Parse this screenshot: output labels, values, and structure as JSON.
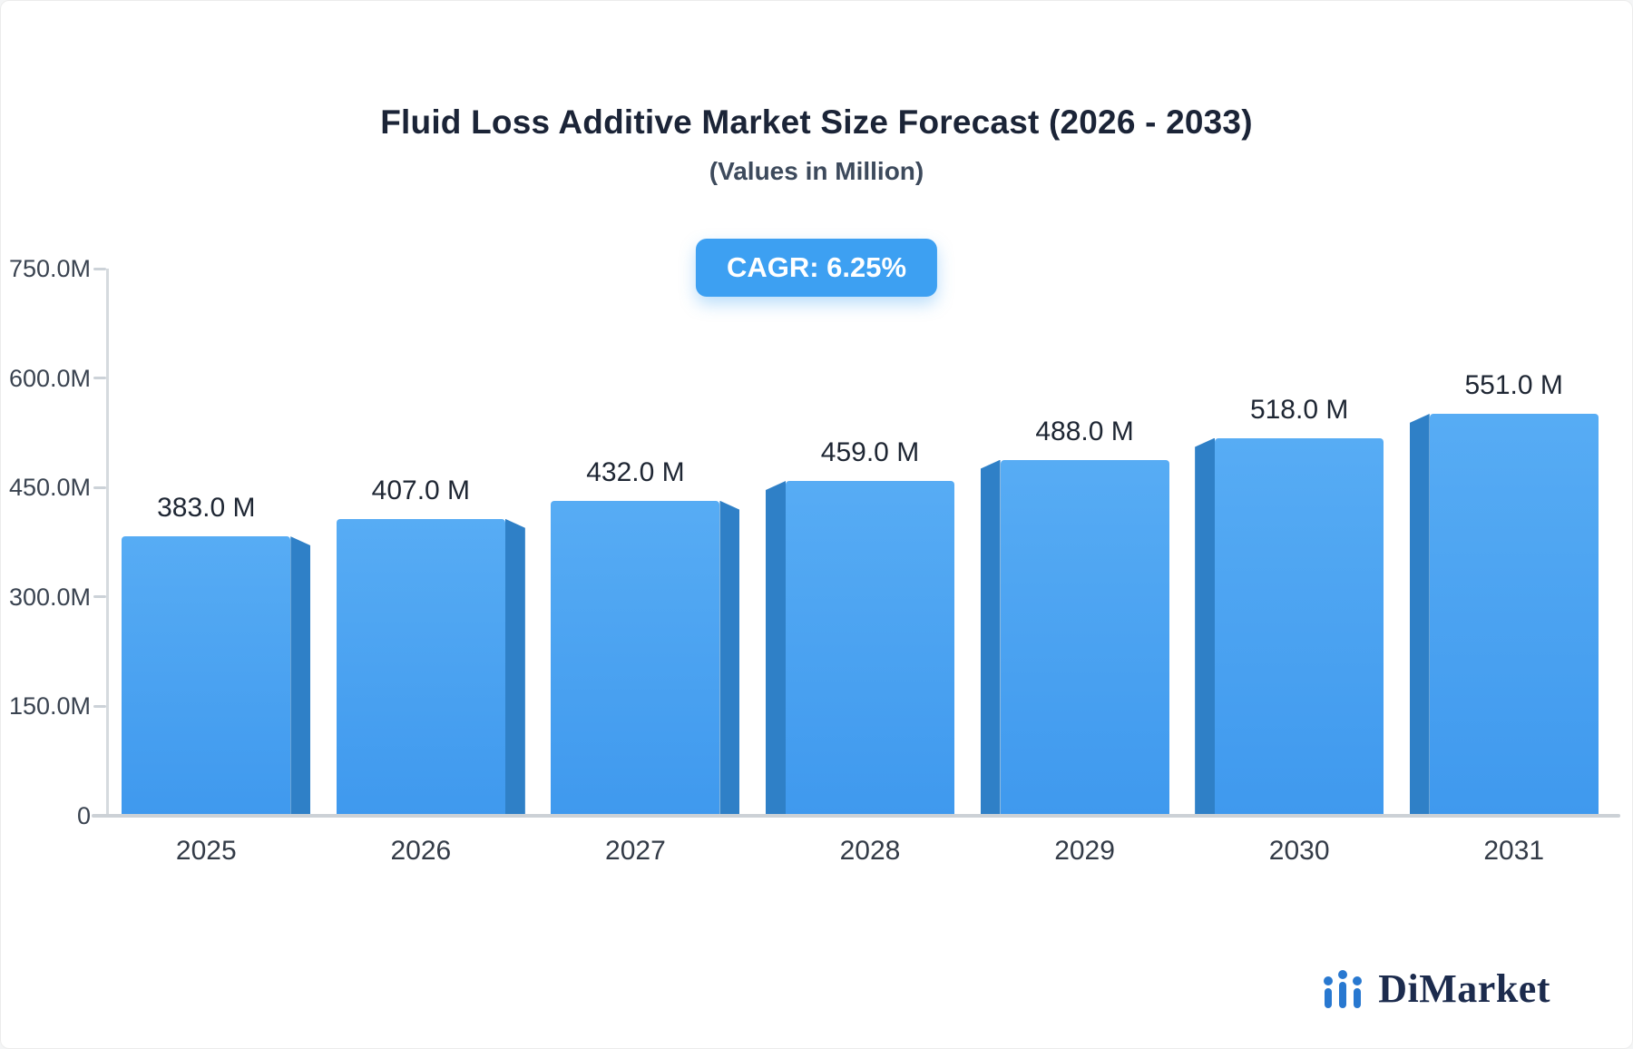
{
  "header": {
    "title": "Fluid Loss Additive Market Size Forecast (2026 - 2033)",
    "subtitle": "(Values in Million)"
  },
  "badge": {
    "label": "CAGR: 6.25%",
    "color": "#3da0f2",
    "text_color": "#ffffff"
  },
  "chart_data": {
    "type": "bar",
    "title": "Fluid Loss Additive Market Size Forecast (2026 - 2033)",
    "subtitle": "(Values in Million)",
    "categories": [
      "2025",
      "2026",
      "2027",
      "2028",
      "2029",
      "2030",
      "2031"
    ],
    "values": [
      383,
      407,
      432,
      459,
      488,
      518,
      551
    ],
    "value_labels": [
      "383.0 M",
      "407.0 M",
      "432.0 M",
      "459.0 M",
      "488.0 M",
      "518.0 M",
      "551.0 M"
    ],
    "xlabel": "",
    "ylabel": "",
    "ylim": [
      0,
      750
    ],
    "yticks": [
      {
        "label": "750.0M",
        "value": 750
      },
      {
        "label": "600.0M",
        "value": 600
      },
      {
        "label": "450.0M",
        "value": 450
      },
      {
        "label": "300.0M",
        "value": 300
      },
      {
        "label": "150.0M",
        "value": 150
      },
      {
        "label": "0",
        "value": 0
      }
    ],
    "grid": false,
    "legend": false,
    "bar_style": "3d",
    "bar_front_top": "#57acf4",
    "bar_front_bottom": "#3f99ee",
    "bar_side": "#2f80c7",
    "axis_color": "#d0d5da"
  },
  "brand": {
    "name": "DiMarket",
    "icon": "mini-bar-chart-icon",
    "icon_color": "#2878d0",
    "text_color": "#1c2b4d"
  }
}
